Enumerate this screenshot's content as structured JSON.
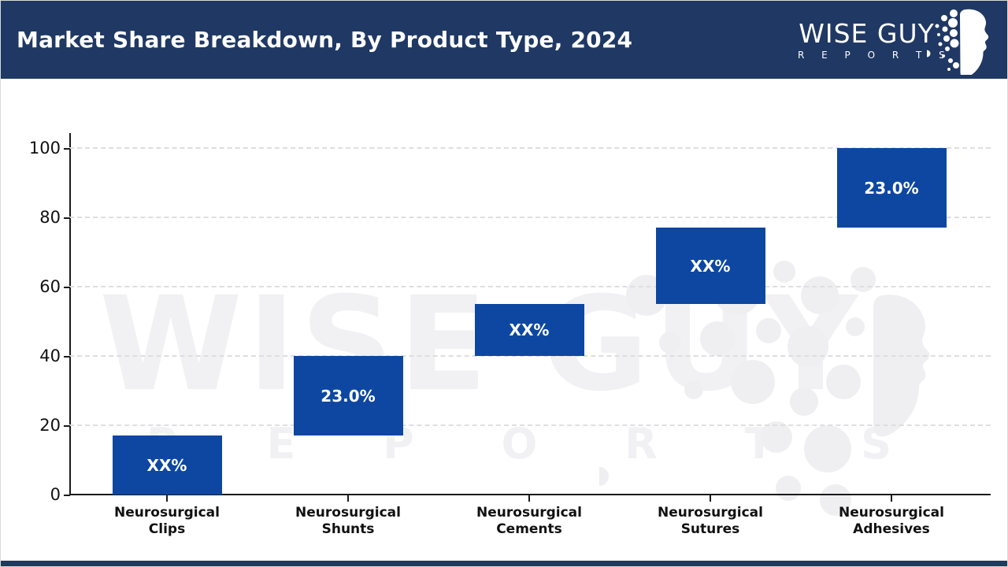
{
  "header": {
    "title": "Market Share Breakdown, By Product Type, 2024",
    "logo": {
      "line1": "WISE GUY",
      "line2": "R E P O R T S"
    }
  },
  "watermark": {
    "line1": "WISE GUY",
    "line2": "R E P O R T S"
  },
  "colors": {
    "header_bg": "#1f3864",
    "footer_bg": "#1f3864",
    "bar": "#0d47a1",
    "grid": "#dedede",
    "axis": "#1a1a1a",
    "watermark": "#f1f1f4",
    "title_text": "#ffffff",
    "bar_label_text": "#ffffff"
  },
  "chart_data": {
    "type": "bar",
    "subtype": "waterfall-floating",
    "title": "Market Share Breakdown, By Product Type, 2024",
    "xlabel": "",
    "ylabel": "",
    "ylim": [
      0,
      100
    ],
    "yticks": [
      0,
      20,
      40,
      60,
      80,
      100
    ],
    "grid": "dashed-horizontal",
    "legend": "none",
    "bar_color": "#0d47a1",
    "categories": [
      "Neurosurgical Clips",
      "Neurosurgical Shunts",
      "Neurosurgical Cements",
      "Neurosurgical Sutures",
      "Neurosurgical Adhesives"
    ],
    "bars": [
      {
        "label_lines": [
          "Neurosurgical",
          "Clips"
        ],
        "start": 0,
        "end": 17,
        "value_label": "XX%"
      },
      {
        "label_lines": [
          "Neurosurgical",
          "Shunts"
        ],
        "start": 17,
        "end": 40,
        "value_label": "23.0%"
      },
      {
        "label_lines": [
          "Neurosurgical",
          "Cements"
        ],
        "start": 40,
        "end": 55,
        "value_label": "XX%"
      },
      {
        "label_lines": [
          "Neurosurgical",
          "Sutures"
        ],
        "start": 55,
        "end": 77,
        "value_label": "XX%"
      },
      {
        "label_lines": [
          "Neurosurgical",
          "Adhesives"
        ],
        "start": 77,
        "end": 100,
        "value_label": "23.0%"
      }
    ]
  }
}
